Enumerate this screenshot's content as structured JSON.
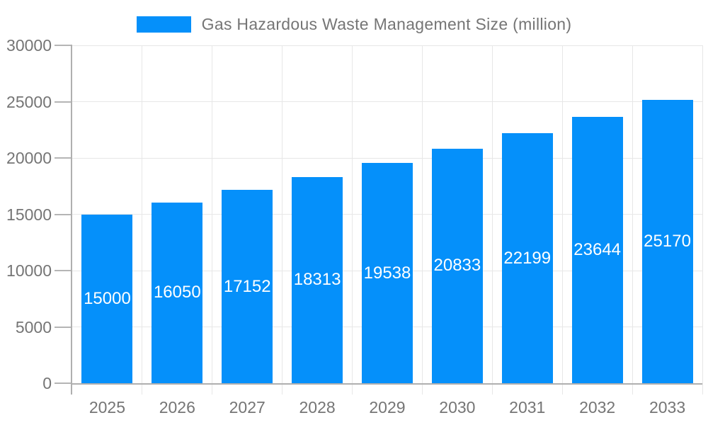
{
  "chart_data": {
    "type": "bar",
    "title": "",
    "categories": [
      "2025",
      "2026",
      "2027",
      "2028",
      "2029",
      "2030",
      "2031",
      "2032",
      "2033"
    ],
    "series": [
      {
        "name": "Gas Hazardous Waste Management Size (million)",
        "values": [
          15000,
          16050,
          17152,
          18313,
          19538,
          20833,
          22199,
          23644,
          25170
        ]
      }
    ],
    "xlabel": "",
    "ylabel": "",
    "ylim": [
      0,
      30000
    ],
    "yticks": [
      0,
      5000,
      10000,
      15000,
      20000,
      25000,
      30000
    ],
    "grid": true,
    "legend_position": "top",
    "data_label_position": "inside-center",
    "colors": {
      "bar": "#0590FA",
      "legend_text": "#757575",
      "axis_text": "#757575",
      "gridline": "#E7E7E7",
      "axis_line": "#AFAFAF",
      "y_tick": "#B5B5B5",
      "data_label": "#FFFFFF",
      "background": "#FFFFFF"
    }
  }
}
